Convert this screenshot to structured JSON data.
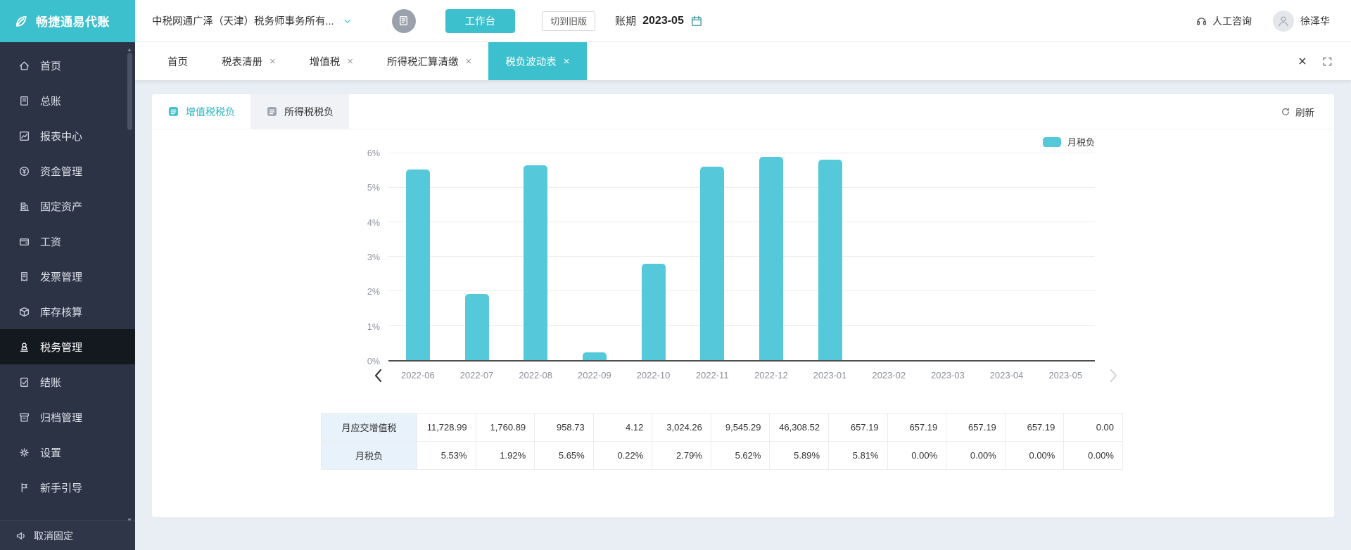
{
  "header": {
    "logo_text": "畅捷通易代账",
    "logo_icon": "leaf-icon",
    "company_selector": "中税网通广泽（天津）税务师事务所有...",
    "company_chevron_icon": "chevron-down-icon",
    "notes_icon": "notes-icon",
    "workbench_button": "工作台",
    "switch_old_button": "切到旧版",
    "period_label": "账期",
    "period_value": "2023-05",
    "calendar_icon": "calendar-icon",
    "support_label": "人工咨询",
    "support_icon": "headset-icon",
    "user_name": "徐泽华",
    "avatar_icon": "person-icon"
  },
  "sidebar": {
    "items": [
      {
        "label": "首页",
        "icon": "home-icon",
        "active": false
      },
      {
        "label": "总账",
        "icon": "ledger-icon",
        "active": false
      },
      {
        "label": "报表中心",
        "icon": "report-icon",
        "active": false
      },
      {
        "label": "资金管理",
        "icon": "funds-icon",
        "active": false
      },
      {
        "label": "固定资产",
        "icon": "assets-icon",
        "active": false
      },
      {
        "label": "工资",
        "icon": "salary-icon",
        "active": false
      },
      {
        "label": "发票管理",
        "icon": "invoice-icon",
        "active": false
      },
      {
        "label": "库存核算",
        "icon": "inventory-icon",
        "active": false
      },
      {
        "label": "税务管理",
        "icon": "tax-icon",
        "active": true
      },
      {
        "label": "结账",
        "icon": "closing-icon",
        "active": false
      },
      {
        "label": "归档管理",
        "icon": "archive-icon",
        "active": false
      },
      {
        "label": "设置",
        "icon": "settings-icon",
        "active": false
      },
      {
        "label": "新手引导",
        "icon": "guide-icon",
        "active": false
      }
    ],
    "unpin_label": "取消固定",
    "unpin_icon": "unpin-icon"
  },
  "tabs": [
    {
      "label": "首页",
      "closable": false,
      "active": false
    },
    {
      "label": "税表清册",
      "closable": true,
      "active": false
    },
    {
      "label": "增值税",
      "closable": true,
      "active": false
    },
    {
      "label": "所得税汇算清缴",
      "closable": true,
      "active": false
    },
    {
      "label": "税负波动表",
      "closable": true,
      "active": true
    }
  ],
  "content": {
    "subtabs": [
      {
        "label": "增值税税负",
        "icon": "form-icon",
        "active": true
      },
      {
        "label": "所得税税负",
        "icon": "form-icon",
        "active": false
      }
    ],
    "refresh_label": "刷新",
    "legend_label": "月税负"
  },
  "chart_data": {
    "type": "bar",
    "title": "",
    "categories": [
      "2022-06",
      "2022-07",
      "2022-08",
      "2022-09",
      "2022-10",
      "2022-11",
      "2022-12",
      "2023-01",
      "2023-02",
      "2023-03",
      "2023-04",
      "2023-05"
    ],
    "series": [
      {
        "name": "月税负",
        "values": [
          5.53,
          1.92,
          5.65,
          0.22,
          2.79,
          5.62,
          5.89,
          5.81,
          0.0,
          0.0,
          0.0,
          0.0
        ]
      }
    ],
    "ylabel": "",
    "ylim": [
      0,
      6
    ],
    "yticks": [
      "0%",
      "1%",
      "2%",
      "3%",
      "4%",
      "5%",
      "6%"
    ],
    "legend_position": "top-right",
    "grid": true,
    "bar_color": "#55c9da"
  },
  "table": {
    "rows": [
      {
        "header": "月应交增值税",
        "values": [
          "11,728.99",
          "1,760.89",
          "958.73",
          "4.12",
          "3,024.26",
          "9,545.29",
          "46,308.52",
          "657.19",
          "657.19",
          "657.19",
          "657.19",
          "0.00"
        ]
      },
      {
        "header": "月税负",
        "values": [
          "5.53%",
          "1.92%",
          "5.65%",
          "0.22%",
          "2.79%",
          "5.62%",
          "5.89%",
          "5.81%",
          "0.00%",
          "0.00%",
          "0.00%",
          "0.00%"
        ]
      }
    ]
  },
  "colors": {
    "accent": "#3cc0cd",
    "bar": "#55c9da",
    "sidebar_bg": "#2c3345",
    "page_bg": "#e9edf4",
    "table_head_bg": "#e7f2fb"
  }
}
